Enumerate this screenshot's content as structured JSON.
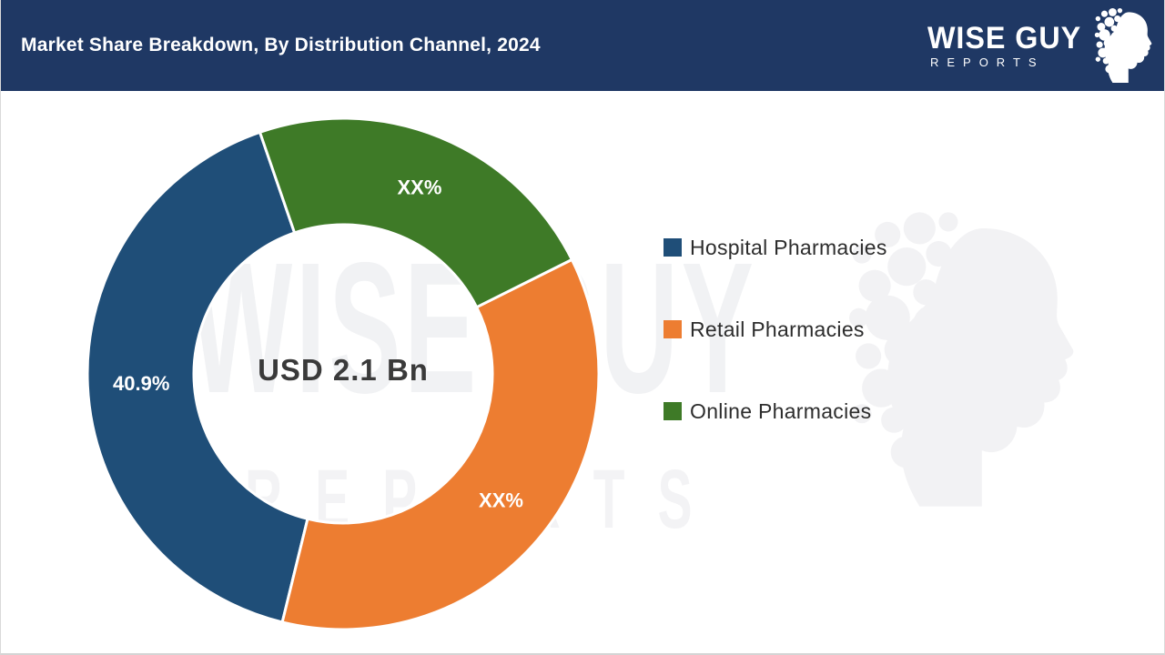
{
  "header": {
    "title": "Market Share Breakdown, By Distribution Channel, 2024",
    "bg_color": "#1f3864",
    "logo": {
      "wordmark": "WISE GUY",
      "subtext": "REPORTS"
    }
  },
  "watermark": {
    "line1": "WISE GUY",
    "line2": "REPORTS"
  },
  "chart_data": {
    "type": "pie",
    "subtype": "donut",
    "title": "Market Share Breakdown, By Distribution Channel, 2024",
    "center_label": "USD 2.1 Bn",
    "legend_position": "right",
    "start_angle_deg": 109,
    "sweep": "counterclockwise",
    "segments": [
      {
        "name": "Hospital Pharmacies",
        "color": "#1f4e78",
        "label": "40.9%",
        "value": 40.9
      },
      {
        "name": "Retail Pharmacies",
        "color": "#ed7d31",
        "label": "XX%",
        "value": 36.2
      },
      {
        "name": "Online Pharmacies",
        "color": "#3e7a27",
        "label": "XX%",
        "value": 22.9
      }
    ]
  }
}
